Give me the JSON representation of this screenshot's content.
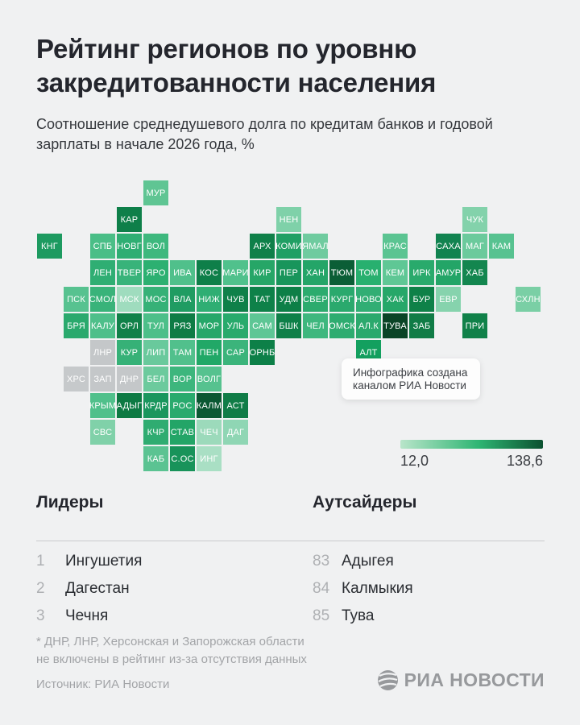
{
  "header": {
    "title": "Рейтинг регионов по уровню закредитованности населения",
    "subtitle": "Соотношение среднедушевого долга по кредитам банков и годовой зарплаты в начале 2026 года, %"
  },
  "chart_data": {
    "type": "heatmap",
    "title": "Рейтинг регионов по уровню закредитованности населения",
    "subtitle": "Соотношение среднедушевого долга по кредитам банков и годовой зарплаты в начале 2026 года, %",
    "unit": "%",
    "scale": {
      "min": 12.0,
      "max": 138.6,
      "min_label": "12,0",
      "max_label": "138,6",
      "gradient_colors": [
        "#b9e5ca",
        "#2eb573",
        "#0b5130"
      ],
      "excluded_color": "#c4c7c9"
    },
    "regions": [
      {
        "label": "МУР",
        "row": 0,
        "col": 4,
        "color": "#5fc593"
      },
      {
        "label": "КАР",
        "row": 1,
        "col": 3,
        "color": "#0e7f49"
      },
      {
        "label": "НЕН",
        "row": 1,
        "col": 9,
        "color": "#7fd1a9"
      },
      {
        "label": "ЧУК",
        "row": 1,
        "col": 16,
        "color": "#83d2ab"
      },
      {
        "label": "КНГ",
        "row": 2,
        "col": 0,
        "color": "#1d9a60"
      },
      {
        "label": "СПБ",
        "row": 2,
        "col": 2,
        "color": "#4abe87"
      },
      {
        "label": "НОВГ",
        "row": 2,
        "col": 3,
        "color": "#2fae73"
      },
      {
        "label": "ВОЛ",
        "row": 2,
        "col": 4,
        "color": "#3eb87e"
      },
      {
        "label": "АРХ",
        "row": 2,
        "col": 8,
        "color": "#0f8049"
      },
      {
        "label": "КОМИ",
        "row": 2,
        "col": 9,
        "color": "#209f64"
      },
      {
        "label": "ЯМАЛ",
        "row": 2,
        "col": 10,
        "color": "#6fcb9f"
      },
      {
        "label": "КРАС",
        "row": 2,
        "col": 13,
        "color": "#5bc492"
      },
      {
        "label": "САХА",
        "row": 2,
        "col": 15,
        "color": "#118350"
      },
      {
        "label": "МАГ",
        "row": 2,
        "col": 16,
        "color": "#6bca9c"
      },
      {
        "label": "КАМ",
        "row": 2,
        "col": 17,
        "color": "#57c290"
      },
      {
        "label": "ЛЕН",
        "row": 3,
        "col": 2,
        "color": "#2fae73"
      },
      {
        "label": "ТВЕР",
        "row": 3,
        "col": 3,
        "color": "#38b37a"
      },
      {
        "label": "ЯРО",
        "row": 3,
        "col": 4,
        "color": "#2cb071"
      },
      {
        "label": "ИВА",
        "row": 3,
        "col": 5,
        "color": "#50c08b"
      },
      {
        "label": "КОС",
        "row": 3,
        "col": 6,
        "color": "#0e7f49"
      },
      {
        "label": "МАРИ",
        "row": 3,
        "col": 7,
        "color": "#50c18c"
      },
      {
        "label": "КИР",
        "row": 3,
        "col": 8,
        "color": "#26a667"
      },
      {
        "label": "ПЕР",
        "row": 3,
        "col": 9,
        "color": "#18955b"
      },
      {
        "label": "ХАН",
        "row": 3,
        "col": 10,
        "color": "#24a568"
      },
      {
        "label": "ТЮМ",
        "row": 3,
        "col": 11,
        "color": "#0b5e36"
      },
      {
        "label": "ТОМ",
        "row": 3,
        "col": 12,
        "color": "#28b06f"
      },
      {
        "label": "КЕМ",
        "row": 3,
        "col": 13,
        "color": "#5fc795"
      },
      {
        "label": "ИРК",
        "row": 3,
        "col": 14,
        "color": "#29aa6c"
      },
      {
        "label": "АМУР",
        "row": 3,
        "col": 15,
        "color": "#23a567"
      },
      {
        "label": "ХАБ",
        "row": 3,
        "col": 16,
        "color": "#13864f"
      },
      {
        "label": "ПСК",
        "row": 4,
        "col": 1,
        "color": "#57c290"
      },
      {
        "label": "СМОЛ",
        "row": 4,
        "col": 2,
        "color": "#39b37a"
      },
      {
        "label": "МСК",
        "row": 4,
        "col": 3,
        "color": "#9fdcbe"
      },
      {
        "label": "МОС",
        "row": 4,
        "col": 4,
        "color": "#36b177"
      },
      {
        "label": "ВЛА",
        "row": 4,
        "col": 5,
        "color": "#1f9c62"
      },
      {
        "label": "НИЖ",
        "row": 4,
        "col": 6,
        "color": "#2fae73"
      },
      {
        "label": "ЧУВ",
        "row": 4,
        "col": 7,
        "color": "#0f8049"
      },
      {
        "label": "ТАТ",
        "row": 4,
        "col": 8,
        "color": "#0e8149"
      },
      {
        "label": "УДМ",
        "row": 4,
        "col": 9,
        "color": "#0d7f47"
      },
      {
        "label": "СВЕР",
        "row": 4,
        "col": 10,
        "color": "#2cab6e"
      },
      {
        "label": "КУРГ",
        "row": 4,
        "col": 11,
        "color": "#2aa96d"
      },
      {
        "label": "НОВО",
        "row": 4,
        "col": 12,
        "color": "#31ae74"
      },
      {
        "label": "ХАК",
        "row": 4,
        "col": 13,
        "color": "#26a769"
      },
      {
        "label": "БУР",
        "row": 4,
        "col": 14,
        "color": "#0e8148"
      },
      {
        "label": "ЕВР",
        "row": 4,
        "col": 15,
        "color": "#86d3ad"
      },
      {
        "label": "СХЛН",
        "row": 4,
        "col": 18,
        "color": "#7acfa5"
      },
      {
        "label": "БРЯ",
        "row": 5,
        "col": 1,
        "color": "#2aa96d"
      },
      {
        "label": "КАЛУ",
        "row": 5,
        "col": 2,
        "color": "#4ebf8a"
      },
      {
        "label": "ОРЛ",
        "row": 5,
        "col": 3,
        "color": "#108149"
      },
      {
        "label": "ТУЛ",
        "row": 5,
        "col": 4,
        "color": "#4dbf89"
      },
      {
        "label": "РЯЗ",
        "row": 5,
        "col": 5,
        "color": "#0e7c45"
      },
      {
        "label": "МОР",
        "row": 5,
        "col": 6,
        "color": "#26a769"
      },
      {
        "label": "УЛЬ",
        "row": 5,
        "col": 7,
        "color": "#28aa6c"
      },
      {
        "label": "САМ",
        "row": 5,
        "col": 8,
        "color": "#5ec695"
      },
      {
        "label": "БШК",
        "row": 5,
        "col": 9,
        "color": "#0e8048"
      },
      {
        "label": "ЧЕЛ",
        "row": 5,
        "col": 10,
        "color": "#3eb77e"
      },
      {
        "label": "ОМСК",
        "row": 5,
        "col": 11,
        "color": "#2eac70"
      },
      {
        "label": "АЛ.К",
        "row": 5,
        "col": 12,
        "color": "#2ba96d"
      },
      {
        "label": "ТУВА",
        "row": 5,
        "col": 13,
        "color": "#0a4426"
      },
      {
        "label": "ЗАБ",
        "row": 5,
        "col": 14,
        "color": "#107c46"
      },
      {
        "label": "ПРИ",
        "row": 5,
        "col": 16,
        "color": "#108149"
      },
      {
        "label": "ЛНР",
        "row": 6,
        "col": 2,
        "color": "#c4c7c9"
      },
      {
        "label": "КУР",
        "row": 6,
        "col": 3,
        "color": "#36b177"
      },
      {
        "label": "ЛИП",
        "row": 6,
        "col": 4,
        "color": "#69c99c"
      },
      {
        "label": "ТАМ",
        "row": 6,
        "col": 5,
        "color": "#51c08c"
      },
      {
        "label": "ПЕН",
        "row": 6,
        "col": 6,
        "color": "#21a867"
      },
      {
        "label": "САР",
        "row": 6,
        "col": 7,
        "color": "#3bb47b"
      },
      {
        "label": "ОРНБ",
        "row": 6,
        "col": 8,
        "color": "#0d8048"
      },
      {
        "label": "АЛТ",
        "row": 6,
        "col": 12,
        "color": "#13a05f"
      },
      {
        "label": "ХРС",
        "row": 7,
        "col": 1,
        "color": "#c6c9cb"
      },
      {
        "label": "ЗАП",
        "row": 7,
        "col": 2,
        "color": "#c4c7c9"
      },
      {
        "label": "ДНР",
        "row": 7,
        "col": 3,
        "color": "#c4c7c9"
      },
      {
        "label": "БЕЛ",
        "row": 7,
        "col": 4,
        "color": "#6cca9d"
      },
      {
        "label": "ВОР",
        "row": 7,
        "col": 5,
        "color": "#3db67d"
      },
      {
        "label": "ВОЛГ",
        "row": 7,
        "col": 6,
        "color": "#56c28f"
      },
      {
        "label": "КРЫМ",
        "row": 8,
        "col": 2,
        "color": "#50c08b"
      },
      {
        "label": "АДЫГ",
        "row": 8,
        "col": 3,
        "color": "#0d7a43"
      },
      {
        "label": "КРДР",
        "row": 8,
        "col": 4,
        "color": "#1a965d"
      },
      {
        "label": "РОС",
        "row": 8,
        "col": 5,
        "color": "#29aa6d"
      },
      {
        "label": "КАЛМ",
        "row": 8,
        "col": 6,
        "color": "#0b5833"
      },
      {
        "label": "АСТ",
        "row": 8,
        "col": 7,
        "color": "#107c47"
      },
      {
        "label": "СВС",
        "row": 9,
        "col": 2,
        "color": "#80d1a9"
      },
      {
        "label": "КЧР",
        "row": 9,
        "col": 4,
        "color": "#2fac71"
      },
      {
        "label": "СТАВ",
        "row": 9,
        "col": 5,
        "color": "#23a567"
      },
      {
        "label": "ЧЕЧ",
        "row": 9,
        "col": 6,
        "color": "#9cdabb"
      },
      {
        "label": "ДАГ",
        "row": 9,
        "col": 7,
        "color": "#8fd6b4"
      },
      {
        "label": "КАБ",
        "row": 10,
        "col": 4,
        "color": "#5bc392"
      },
      {
        "label": "С.ОС",
        "row": 10,
        "col": 5,
        "color": "#18935a"
      },
      {
        "label": "ИНГ",
        "row": 10,
        "col": 6,
        "color": "#a9dfc4"
      }
    ]
  },
  "tooltip": {
    "line1": "Инфографика создана",
    "line2": "каналом РИА Новости"
  },
  "legend": {
    "min_label": "12,0",
    "max_label": "138,6"
  },
  "rankings": {
    "leaders": {
      "title": "Лидеры",
      "items": [
        {
          "rank": "1",
          "name": "Ингушетия"
        },
        {
          "rank": "2",
          "name": "Дагестан"
        },
        {
          "rank": "3",
          "name": "Чечня"
        }
      ]
    },
    "outsiders": {
      "title": "Аутсайдеры",
      "items": [
        {
          "rank": "83",
          "name": "Адыгея"
        },
        {
          "rank": "84",
          "name": "Калмыкия"
        },
        {
          "rank": "85",
          "name": "Тува"
        }
      ]
    }
  },
  "footnote": {
    "line1": "* ДНР, ЛНР, Херсонская и Запорожская области",
    "line2": "не включены в рейтинг из-за отсутствия данных"
  },
  "source": "Источник: РИА Новости",
  "logo": {
    "text": "РИА НОВОСТИ"
  }
}
